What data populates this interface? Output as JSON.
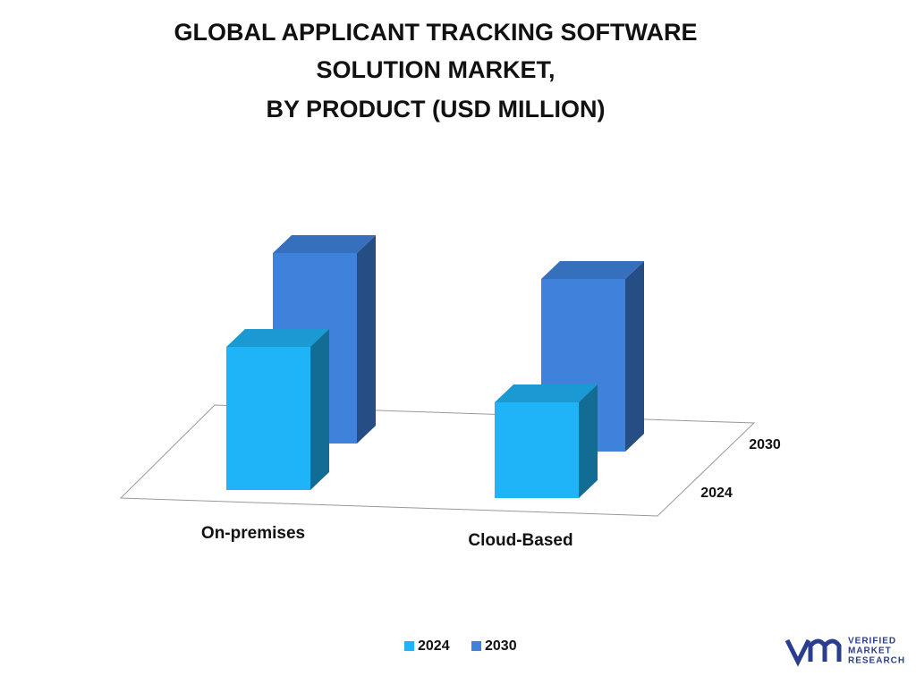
{
  "chart_data": {
    "type": "bar3d",
    "title": [
      "GLOBAL APPLICANT TRACKING SOFTWARE",
      "SOLUTION MARKET,",
      "BY  PRODUCT (USD MILLION)"
    ],
    "categories": [
      "On-premises",
      "Cloud-Based"
    ],
    "series": [
      {
        "name": "2024",
        "color": "#1fb4f7",
        "values": [
          160,
          107
        ]
      },
      {
        "name": "2030",
        "color": "#3f82dc",
        "values": [
          213,
          193
        ]
      }
    ],
    "legend": "bottom"
  },
  "logo": {
    "lines": [
      "VERIFIED",
      "MARKET",
      "RESEARCH"
    ]
  }
}
